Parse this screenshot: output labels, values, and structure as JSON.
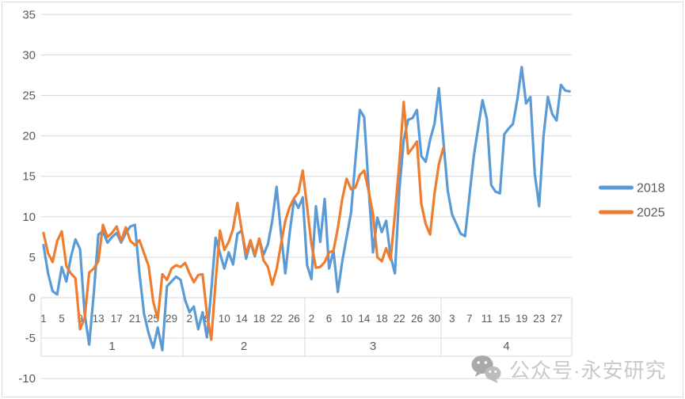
{
  "chart_data": {
    "type": "line",
    "title": "",
    "grid": true,
    "legend_position": "right",
    "y_axis": {
      "min": -10,
      "max": 35,
      "step": 5,
      "tick_labels": [
        "35",
        "30",
        "25",
        "20",
        "15",
        "10",
        "5",
        "0",
        "-5",
        "-10"
      ]
    },
    "x_axis": {
      "unit": "day-of-month",
      "months": [
        {
          "label": "1",
          "days": 31,
          "tick_days": [
            1,
            5,
            9,
            13,
            17,
            21,
            25,
            29
          ]
        },
        {
          "label": "2",
          "days": 28,
          "tick_days": [
            2,
            6,
            10,
            14,
            18,
            22,
            26
          ]
        },
        {
          "label": "3",
          "days": 31,
          "tick_days": [
            2,
            6,
            10,
            14,
            18,
            22,
            26,
            30
          ]
        },
        {
          "label": "4",
          "days": 30,
          "tick_days": [
            3,
            7,
            11,
            15,
            19,
            23,
            27
          ]
        }
      ]
    },
    "series": [
      {
        "name": "2018",
        "color": "#5B9BD5",
        "values": [
          6.5,
          3.0,
          0.8,
          0.4,
          3.8,
          2.0,
          5.0,
          7.2,
          6.0,
          -2.0,
          -5.8,
          0.5,
          7.8,
          8.2,
          6.8,
          7.5,
          8.0,
          6.8,
          8.0,
          8.8,
          9.0,
          3.0,
          -2.0,
          -4.4,
          -6.2,
          -3.7,
          -6.5,
          1.4,
          2.0,
          2.6,
          2.2,
          -0.3,
          -1.8,
          -1.1,
          -3.9,
          -1.8,
          -4.9,
          0.9,
          7.4,
          5.5,
          3.6,
          5.6,
          4.1,
          7.9,
          8.3,
          4.8,
          6.9,
          5.1,
          7.3,
          5.3,
          6.6,
          9.5,
          13.7,
          8.0,
          3.0,
          8.0,
          12.1,
          11.1,
          12.4,
          4.0,
          2.3,
          11.3,
          6.9,
          12.2,
          3.6,
          5.8,
          0.7,
          4.5,
          7.5,
          10.5,
          17.0,
          23.2,
          22.3,
          13.6,
          5.6,
          9.9,
          8.1,
          9.5,
          5.1,
          3.0,
          13.3,
          19.5,
          22.0,
          22.2,
          23.2,
          17.5,
          16.8,
          19.5,
          21.5,
          25.9,
          19.5,
          13.3,
          10.3,
          9.1,
          7.9,
          7.6,
          12.6,
          17.5,
          21.0,
          24.4,
          22.1,
          13.9,
          13.1,
          12.9,
          20.2,
          20.9,
          21.5,
          24.5,
          28.5,
          24.0,
          24.8,
          15.3,
          11.3,
          19.9,
          24.8,
          22.7,
          21.9,
          26.3,
          25.6,
          25.5
        ]
      },
      {
        "name": "2025",
        "color": "#ED7D31",
        "values": [
          8.0,
          5.5,
          4.4,
          7.0,
          8.2,
          3.9,
          3.0,
          2.4,
          -3.9,
          -2.5,
          3.1,
          3.6,
          4.5,
          9.0,
          7.5,
          8.0,
          8.8,
          7.0,
          8.7,
          7.0,
          6.5,
          7.1,
          5.5,
          3.9,
          -0.5,
          -2.6,
          2.9,
          2.2,
          3.6,
          4.0,
          3.8,
          4.3,
          3.0,
          1.9,
          2.8,
          2.9,
          -2.0,
          -5.2,
          2.0,
          8.3,
          5.9,
          6.9,
          8.5,
          11.7,
          8.3,
          5.4,
          7.1,
          5.3,
          7.3,
          4.6,
          3.8,
          1.6,
          3.5,
          6.6,
          9.5,
          11.2,
          12.3,
          13.0,
          15.7,
          11.2,
          6.6,
          3.7,
          3.8,
          4.4,
          5.6,
          5.8,
          8.6,
          12.2,
          14.7,
          13.4,
          13.6,
          15.2,
          15.7,
          13.2,
          10.3,
          5.0,
          4.5,
          6.1,
          4.7,
          10.3,
          16.7,
          24.2,
          17.8,
          18.5,
          19.3,
          11.6,
          9.1,
          7.8,
          12.9,
          16.5,
          18.5
        ]
      }
    ]
  },
  "watermark": {
    "text": "公众号·永安研究"
  },
  "colors": {
    "grid": "#D9D9D9",
    "frame": "#DCDCDC",
    "axis_text": "#595959",
    "watermark_text": "#C9C9C9",
    "watermark_icon_a": "#A9A9A9",
    "watermark_icon_b": "#BDBDBD",
    "background": "#FFFFFF"
  }
}
